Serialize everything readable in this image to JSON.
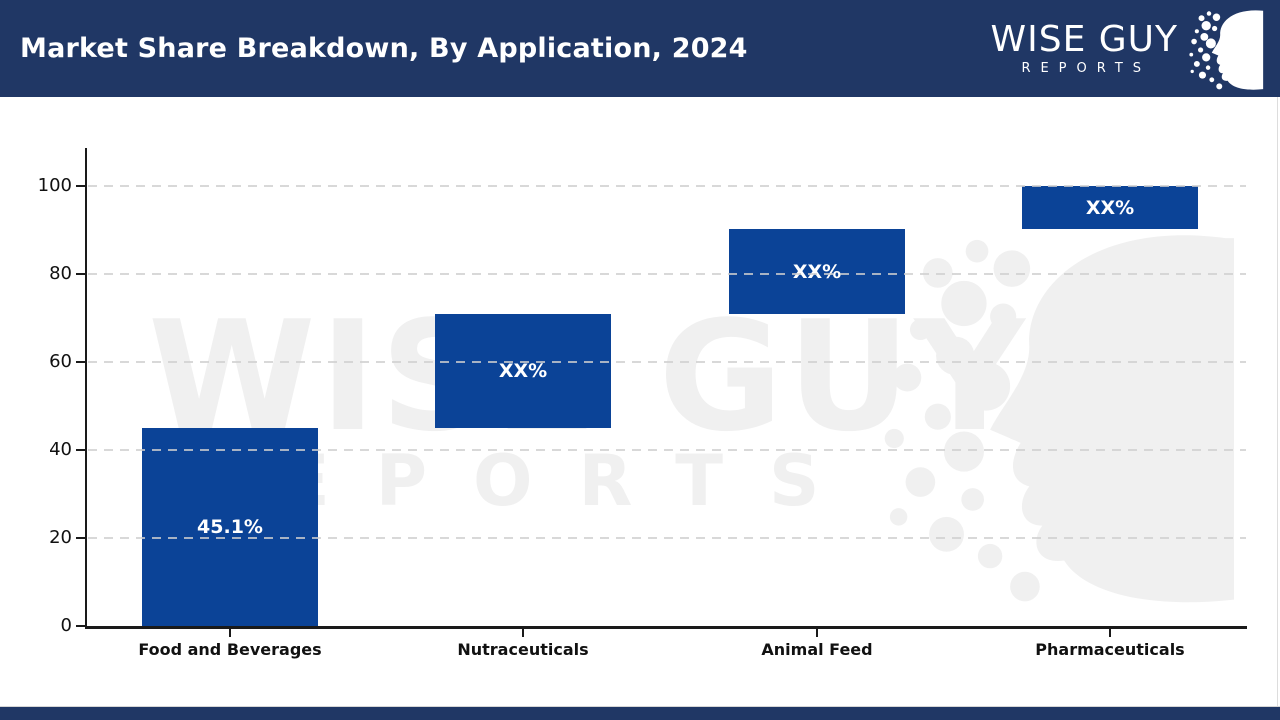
{
  "header": {
    "title": "Market Share Breakdown, By Application, 2024",
    "logo": {
      "brand_top": "WISE GUY",
      "brand_bottom": "REPORTS"
    }
  },
  "watermark": {
    "line1": "WISE GUY",
    "line2": "REPORTS"
  },
  "chart_data": {
    "type": "bar",
    "subtype": "floating-segment-waterfall",
    "title": "Market Share Breakdown, By Application, 2024",
    "categories": [
      "Food and Beverages",
      "Nutraceuticals",
      "Animal Feed",
      "Pharmaceuticals"
    ],
    "segments": [
      {
        "category": "Food and Beverages",
        "label": "45.1%",
        "start": 0,
        "end": 45.1
      },
      {
        "category": "Nutraceuticals",
        "label": "XX%",
        "start": 45.1,
        "end": 70.8
      },
      {
        "category": "Animal Feed",
        "label": "XX%",
        "start": 70.8,
        "end": 90.2
      },
      {
        "category": "Pharmaceuticals",
        "label": "XX%",
        "start": 90.2,
        "end": 100
      }
    ],
    "yticks": [
      0,
      20,
      40,
      60,
      80,
      100
    ],
    "ylim": [
      0,
      100
    ],
    "grid": "horizontal-dashed",
    "legend": "none",
    "bar_color": "#0b4397",
    "bar_label_color": "#ffffff"
  },
  "colors": {
    "header_bg": "#203765",
    "footer_bg": "#203765",
    "axis": "#1a1a1a",
    "gridline": "#cfcfcf",
    "watermark": "#f0f0f0",
    "page_bg": "#ffffff"
  }
}
